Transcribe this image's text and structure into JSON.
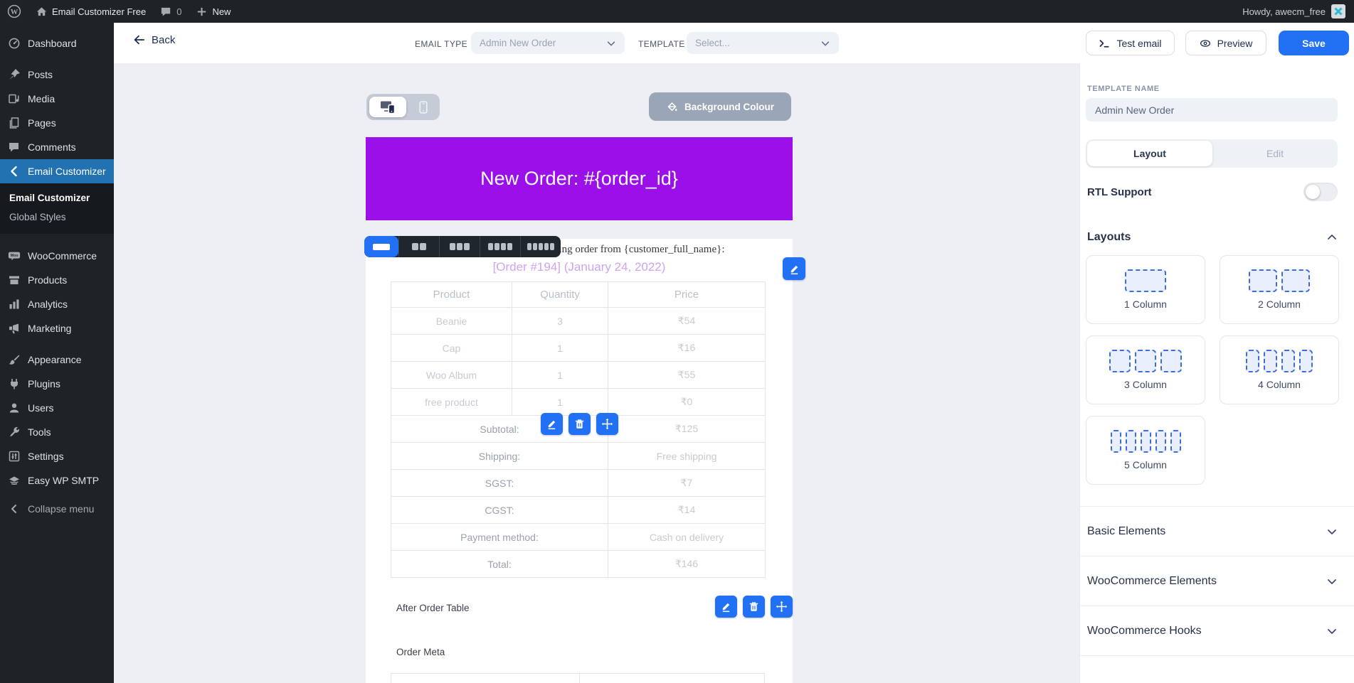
{
  "colors": {
    "dark_bar": "#1d2327",
    "wp_blue": "#2271b1",
    "accent": "#2270f4",
    "purple": "#9b0fe9",
    "canvas_bg": "#edeff4",
    "gray_button": "#9aa5b7"
  },
  "admin_bar": {
    "site_name": "Email Customizer Free",
    "comments_count": "0",
    "new_label": "New",
    "howdy_text": "Howdy, awecm_free"
  },
  "sidebar": {
    "items": [
      {
        "id": "dashboard",
        "label": "Dashboard",
        "icon": "dashboard-icon"
      },
      {
        "id": "posts",
        "label": "Posts",
        "icon": "posts-icon",
        "separator_before": true
      },
      {
        "id": "media",
        "label": "Media",
        "icon": "media-icon"
      },
      {
        "id": "pages",
        "label": "Pages",
        "icon": "pages-icon"
      },
      {
        "id": "comments",
        "label": "Comments",
        "icon": "comments-icon"
      },
      {
        "id": "email-customizer",
        "label": "Email Customizer",
        "icon": "email-customizer-icon",
        "active": true,
        "submenu": [
          {
            "label": "Email Customizer",
            "current": true
          },
          {
            "label": "Global Styles"
          }
        ]
      },
      {
        "id": "woocommerce",
        "label": "WooCommerce",
        "icon": "woocommerce-icon"
      },
      {
        "id": "products",
        "label": "Products",
        "icon": "products-icon"
      },
      {
        "id": "analytics",
        "label": "Analytics",
        "icon": "analytics-icon"
      },
      {
        "id": "marketing",
        "label": "Marketing",
        "icon": "marketing-icon"
      },
      {
        "id": "appearance",
        "label": "Appearance",
        "icon": "appearance-icon",
        "separator_before": true
      },
      {
        "id": "plugins",
        "label": "Plugins",
        "icon": "plugins-icon"
      },
      {
        "id": "users",
        "label": "Users",
        "icon": "users-icon"
      },
      {
        "id": "tools",
        "label": "Tools",
        "icon": "tools-icon"
      },
      {
        "id": "settings",
        "label": "Settings",
        "icon": "settings-icon"
      },
      {
        "id": "easy-wp-smtp",
        "label": "Easy WP SMTP",
        "icon": "easy-wp-smtp-icon"
      }
    ],
    "collapse_label": "Collapse menu"
  },
  "toolbar": {
    "back_label": "Back",
    "email_type_label": "EMAIL TYPE",
    "email_type_value": "Admin New Order",
    "template_label": "TEMPLATE",
    "template_value": "Select...",
    "test_email_label": "Test email",
    "preview_label": "Preview",
    "save_label": "Save"
  },
  "canvas": {
    "background_colour_label": "Background Colour",
    "column_bar": {
      "options": [
        {
          "cols": 1,
          "active": true
        },
        {
          "cols": 2
        },
        {
          "cols": 3
        },
        {
          "cols": 4
        },
        {
          "cols": 5
        }
      ]
    },
    "email": {
      "header_title": "New Order: #{order_id}",
      "intro_text": "You have received the following order from {customer_full_name}:",
      "order_line": "[Order #194] (January 24, 2022)",
      "table": {
        "headers": [
          "Product",
          "Quantity",
          "Price"
        ],
        "rows": [
          [
            "Beanie",
            "3",
            "₹54"
          ],
          [
            "Cap",
            "1",
            "₹16"
          ],
          [
            "Woo Album",
            "1",
            "₹55"
          ],
          [
            "free product",
            "1",
            "₹0"
          ]
        ],
        "totals": [
          [
            "Subtotal:",
            "₹125"
          ],
          [
            "Shipping:",
            "Free shipping"
          ],
          [
            "SGST:",
            "₹7"
          ],
          [
            "CGST:",
            "₹14"
          ],
          [
            "Payment method:",
            "Cash on delivery"
          ],
          [
            "Total:",
            "₹146"
          ]
        ]
      },
      "after_table_label": "After Order Table",
      "order_meta_label": "Order Meta"
    }
  },
  "right_panel": {
    "template_name_label": "TEMPLATE NAME",
    "template_name_value": "Admin New Order",
    "tabs": [
      "Layout",
      "Edit"
    ],
    "rtl_label": "RTL Support",
    "rtl_enabled": false,
    "layouts_title": "Layouts",
    "layouts": [
      {
        "label": "1 Column",
        "cols": 1
      },
      {
        "label": "2 Column",
        "cols": 2
      },
      {
        "label": "3 Column",
        "cols": 3
      },
      {
        "label": "4 Column",
        "cols": 4
      },
      {
        "label": "5 Column",
        "cols": 5
      }
    ],
    "sections": [
      "Basic Elements",
      "WooCommerce Elements",
      "WooCommerce Hooks"
    ]
  }
}
